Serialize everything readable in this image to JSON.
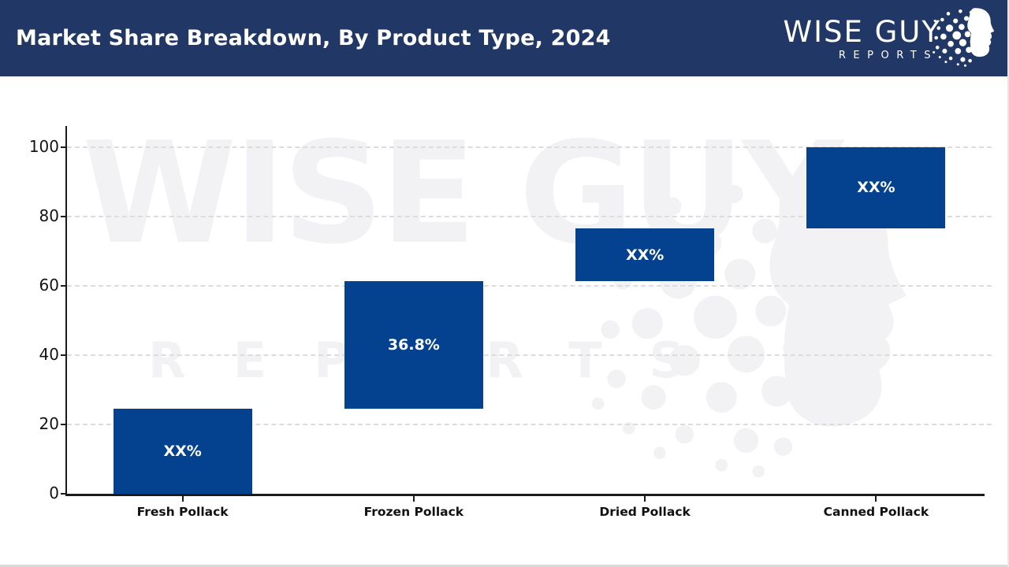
{
  "header": {
    "title": "Market Share Breakdown, By Product Type, 2024",
    "bg_color": "#213765",
    "logo": {
      "name": "WISE GUY",
      "sub": "REPORTS"
    }
  },
  "watermark": {
    "line1": "WISE GUY",
    "line2": "REPORTS"
  },
  "chart_data": {
    "type": "bar",
    "subtype": "waterfall-floating",
    "title": "Market Share Breakdown, By Product Type, 2024",
    "categories": [
      "Fresh Pollack",
      "Frozen Pollack",
      "Dried Pollack",
      "Canned Pollack"
    ],
    "bars": [
      {
        "category": "Fresh Pollack",
        "start": 0,
        "end": 24.5,
        "value_label": "XX%"
      },
      {
        "category": "Frozen Pollack",
        "start": 24.5,
        "end": 61.3,
        "value_label": "36.8%"
      },
      {
        "category": "Dried Pollack",
        "start": 61.3,
        "end": 76.6,
        "value_label": "XX%"
      },
      {
        "category": "Canned Pollack",
        "start": 76.6,
        "end": 100,
        "value_label": "XX%"
      }
    ],
    "yticks": [
      0,
      20,
      40,
      60,
      80,
      100
    ],
    "ylim": [
      0,
      106
    ],
    "xlabel": "",
    "ylabel": "",
    "legend": "none",
    "grid": "horizontal-dashed",
    "bar_color": "#04418f",
    "bar_label_color": "#ffffff",
    "grid_color": "#dcdcdc"
  }
}
